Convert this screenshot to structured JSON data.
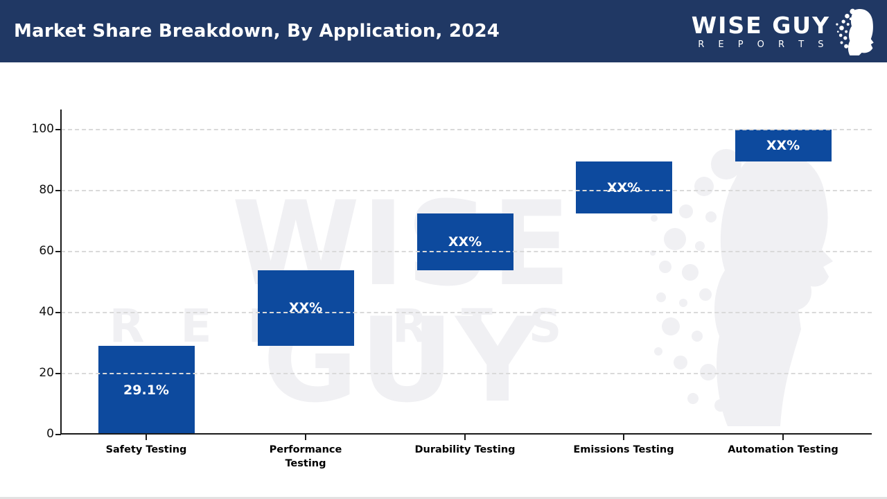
{
  "header": {
    "title": "Market Share Breakdown, By Application, 2024",
    "logo": {
      "line1": "WISE GUY",
      "line2": "R E P O R T S"
    },
    "background_color": "#203864"
  },
  "watermark": {
    "line1": "WISE GUY",
    "line2": "REPORTS"
  },
  "chart_data": {
    "type": "bar",
    "subtype": "waterfall",
    "title": "Market Share Breakdown, By Application, 2024",
    "xlabel": "",
    "ylabel": "",
    "ylim": [
      0,
      100
    ],
    "yticks": [
      0,
      20,
      40,
      60,
      80,
      100
    ],
    "grid": "horizontal-dashed",
    "legend": "none",
    "bar_color": "#0d4a9e",
    "bar_label_color": "#ffffff",
    "categories": [
      "Safety Testing",
      "Performance\nTesting",
      "Durability Testing",
      "Emissions Testing",
      "Automation Testing"
    ],
    "segments": [
      {
        "category": "Safety Testing",
        "start": 0,
        "end": 29.1,
        "label": "29.1%"
      },
      {
        "category": "Performance Testing",
        "start": 29.1,
        "end": 53.9,
        "label": "XX%"
      },
      {
        "category": "Durability Testing",
        "start": 53.9,
        "end": 72.5,
        "label": "XX%"
      },
      {
        "category": "Emissions Testing",
        "start": 72.5,
        "end": 89.5,
        "label": "XX%"
      },
      {
        "category": "Automation Testing",
        "start": 89.5,
        "end": 100,
        "label": "XX%"
      }
    ]
  }
}
